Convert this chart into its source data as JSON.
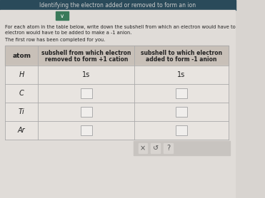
{
  "title_bar": "Identifying the electron added or removed to form an ion",
  "desc_line1": "For each atom in the table below, write down the subshell from which an electron would have to",
  "desc_line2": "electron would have to be added to make a -1 anion.",
  "note": "The first row has been completed for you.",
  "col1_header": "atom",
  "col2_header_line1": "subshell from which electron",
  "col2_header_line2": "removed to form +1 cation",
  "col3_header_line1": "subshell to which electron",
  "col3_header_line2": "added to form -1 anion",
  "rows": [
    [
      "H",
      "1s",
      "1s"
    ],
    [
      "C",
      "",
      ""
    ],
    [
      "Ti",
      "",
      ""
    ],
    [
      "Ar",
      "",
      ""
    ]
  ],
  "title_bar_bg": "#2a4a5a",
  "title_text_color": "#cccccc",
  "dropdown_bg": "#3a7a5a",
  "page_bg": "#d8d4d0",
  "content_bg": "#e0dcd8",
  "table_bg": "#dedad6",
  "header_row_bg": "#c8c0b8",
  "cell_bg": "#e8e4e0",
  "grid_color": "#aaaaaa",
  "text_color": "#222222",
  "input_box_bg": "#f0eeec",
  "input_box_border": "#aaaaaa",
  "bottom_panel_bg": "#c8c4c0",
  "btn_bg": "#d8d4d0",
  "btn_text": "#555555"
}
